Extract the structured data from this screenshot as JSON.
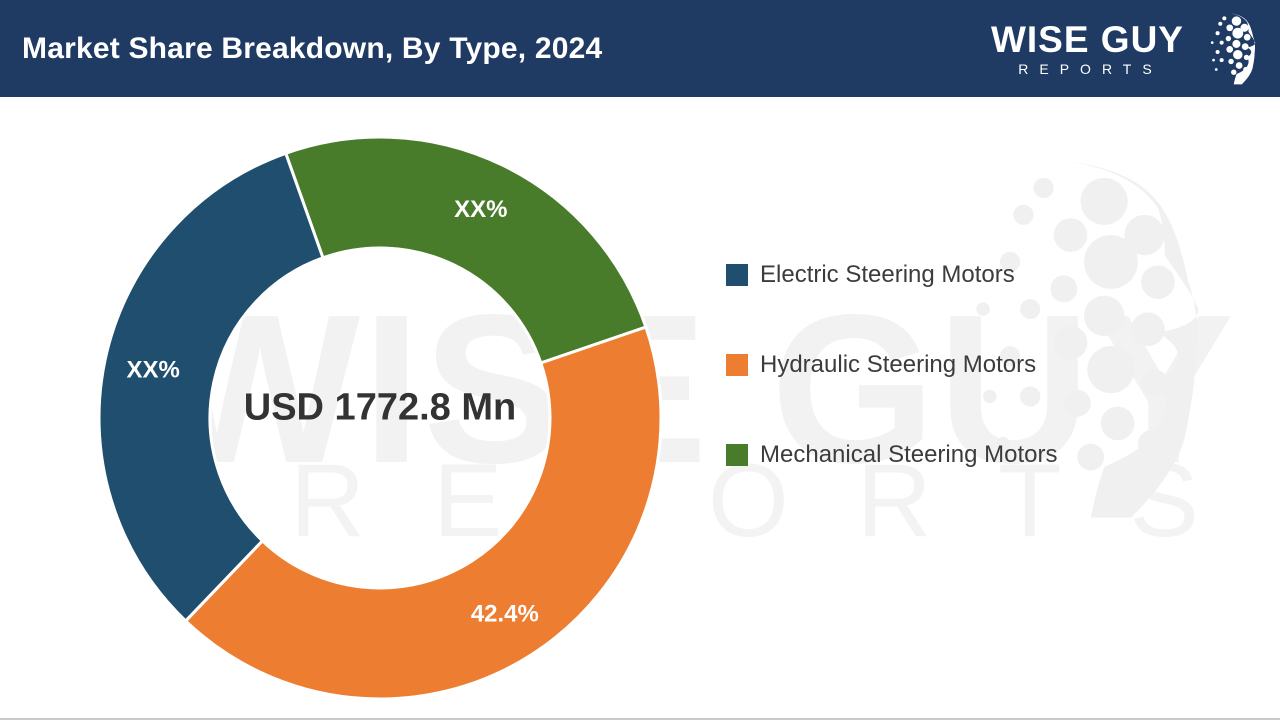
{
  "header": {
    "title": "Market Share Breakdown, By Type, 2024",
    "logo_line1": "WISE GUY",
    "logo_line2": "REPORTS"
  },
  "watermark": {
    "line1": "WISE GUY",
    "line2": "REPORTS"
  },
  "chart_data": {
    "type": "donut",
    "title": "Market Share Breakdown, By Type, 2024",
    "center_label": "USD 1772.8 Mn",
    "start_angle_deg_clockwise_from_top": -19.6,
    "legend_position": "right",
    "slices": [
      {
        "name": "Mechanical Steering Motors",
        "label": "XX%",
        "pct": 25.2,
        "color": "#487b2a"
      },
      {
        "name": "Hydraulic Steering Motors",
        "label": "42.4%",
        "pct": 42.4,
        "color": "#ed7d31"
      },
      {
        "name": "Electric Steering Motors",
        "label": "XX%",
        "pct": 32.4,
        "color": "#1f4e6e"
      }
    ]
  },
  "legend": [
    {
      "label": "Electric Steering Motors",
      "color": "#1f4e6e"
    },
    {
      "label": "Hydraulic Steering Motors",
      "color": "#ed7d31"
    },
    {
      "label": "Mechanical Steering Motors",
      "color": "#487b2a"
    }
  ],
  "colors": {
    "header_bg": "#1f3a63",
    "center_text": "#333333",
    "legend_text": "#3c3c3c"
  }
}
